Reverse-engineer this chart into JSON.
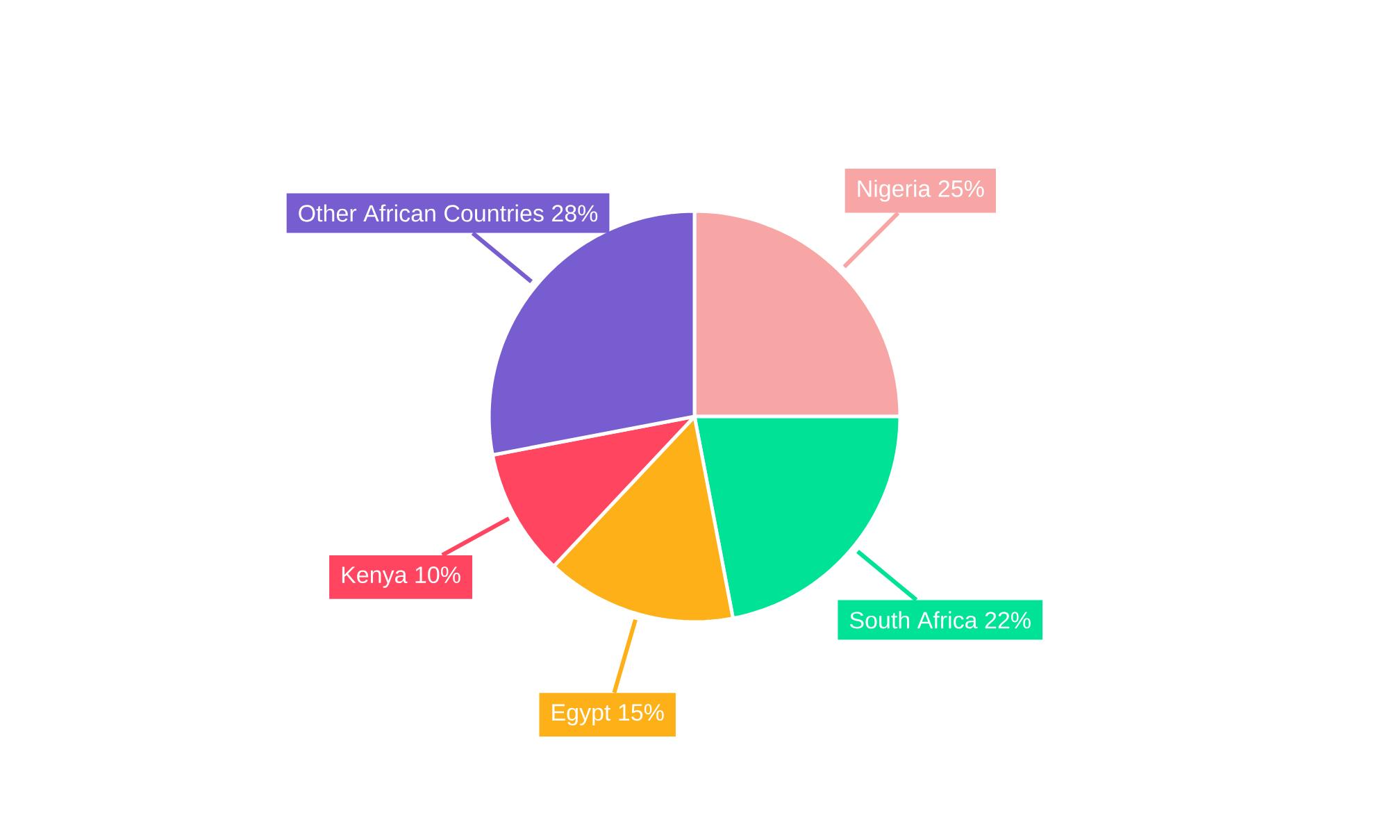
{
  "chart_data": {
    "type": "pie",
    "categories": [
      "Nigeria",
      "South Africa",
      "Egypt",
      "Kenya",
      "Other African Countries"
    ],
    "values": [
      25,
      22,
      15,
      10,
      28
    ],
    "value_labels": [
      "25%",
      "22%",
      "15%",
      "10%",
      "28%"
    ],
    "colors": [
      "#f8a5a5",
      "#00e396",
      "#feb019",
      "#ff4560",
      "#775dd0"
    ]
  }
}
